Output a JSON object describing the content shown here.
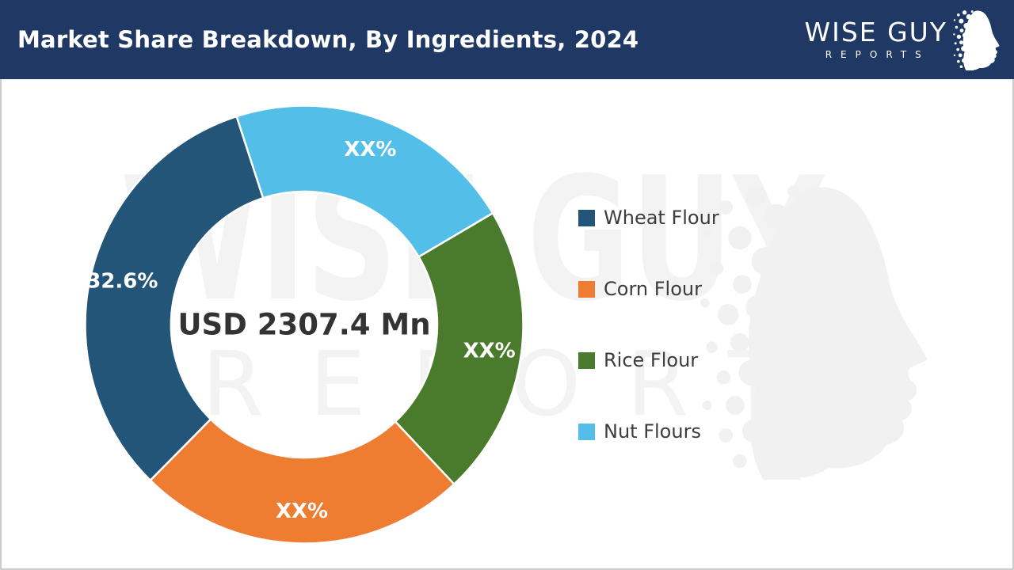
{
  "header": {
    "title": "Market Share Breakdown, By Ingredients, 2024",
    "bg_color": "#1F3864",
    "logo": {
      "brand_line1": "WISE GUY",
      "brand_line2": "REPORTS"
    }
  },
  "chart_data": {
    "type": "pie",
    "subtype": "donut",
    "title": "Market Share Breakdown, By Ingredients, 2024",
    "center_label": "USD 2307.4 Mn",
    "center_label_color": "#333333",
    "segment_label_color": "#FFFFFF",
    "start_angle_deg": -18,
    "draw_order": [
      3,
      2,
      1,
      0
    ],
    "legend_position": "right",
    "segments": [
      {
        "name": "Wheat Flour",
        "value_pct": 32.6,
        "label": "32.6%",
        "color": "#235578"
      },
      {
        "name": "Corn Flour",
        "value_pct": 24.4,
        "label": "XX%",
        "color": "#EE7D31"
      },
      {
        "name": "Rice Flour",
        "value_pct": 21.5,
        "label": "XX%",
        "color": "#4A7A2B"
      },
      {
        "name": "Nut Flours",
        "value_pct": 21.5,
        "label": "XX%",
        "color": "#53BFE8"
      }
    ]
  },
  "legend": {
    "items": [
      {
        "label": "Wheat Flour",
        "color": "#235578"
      },
      {
        "label": "Corn Flour",
        "color": "#EE7D31"
      },
      {
        "label": "Rice Flour",
        "color": "#4A7A2B"
      },
      {
        "label": "Nut Flours",
        "color": "#53BFE8"
      }
    ]
  },
  "watermark": {
    "line1": "WISE GUY",
    "line2": "REPORTS"
  }
}
